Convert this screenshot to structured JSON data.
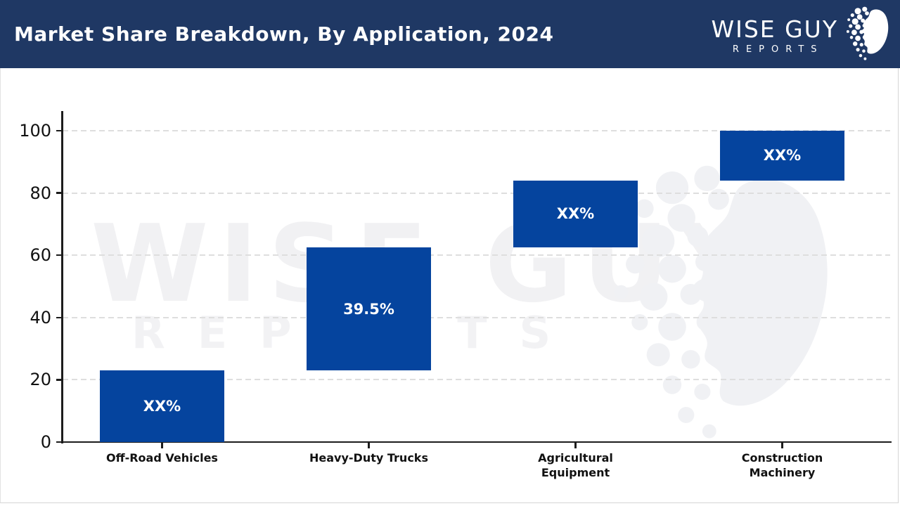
{
  "header": {
    "title": "Market Share Breakdown, By Application, 2024",
    "logo": {
      "line1": "WISE GUY",
      "line2": "REPORTS"
    }
  },
  "watermark": {
    "line1": "WISE GUY",
    "line2": "REPORTS"
  },
  "chart_data": {
    "type": "bar",
    "subtype": "floating-waterfall",
    "title": "Market Share Breakdown, By Application, 2024",
    "categories": [
      {
        "name": "Off-Road Vehicles",
        "lines": [
          "Off-Road Vehicles"
        ]
      },
      {
        "name": "Heavy-Duty Trucks",
        "lines": [
          "Heavy-Duty Trucks"
        ]
      },
      {
        "name": "Agricultural Equipment",
        "lines": [
          "Agricultural",
          "Equipment"
        ]
      },
      {
        "name": "Construction Machinery",
        "lines": [
          "Construction",
          "Machinery"
        ]
      }
    ],
    "bars": [
      {
        "value_label": "XX%",
        "start": 0,
        "end": 23
      },
      {
        "value_label": "39.5%",
        "start": 23,
        "end": 62.5
      },
      {
        "value_label": "XX%",
        "start": 62.5,
        "end": 84
      },
      {
        "value_label": "XX%",
        "start": 84,
        "end": 100
      }
    ],
    "ylim": [
      0,
      100
    ],
    "yticks": [
      0,
      20,
      40,
      60,
      80,
      100
    ],
    "xlabel": "",
    "ylabel": "",
    "legend": "none",
    "grid": "horizontal-dashed",
    "bar_color": "#05449e",
    "bar_label_color": "#ffffff",
    "header_color": "#1f3864"
  }
}
